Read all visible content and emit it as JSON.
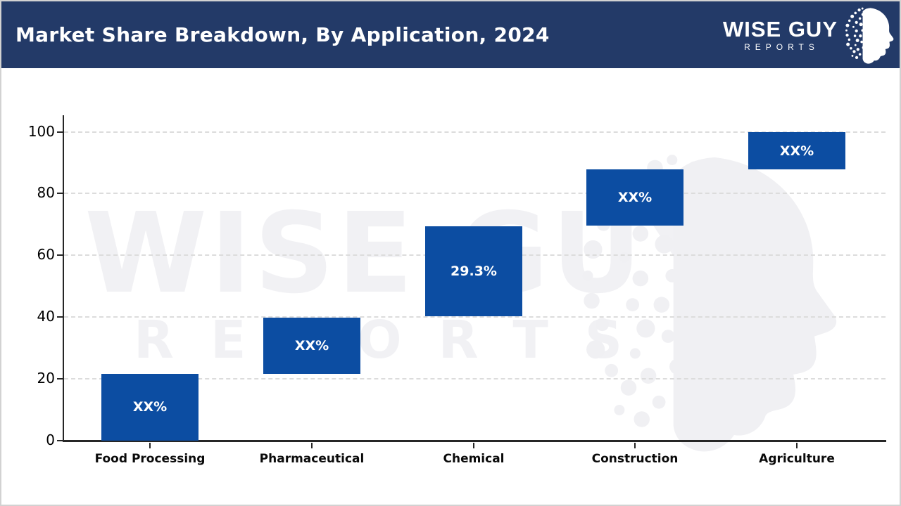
{
  "header": {
    "title": "Market Share Breakdown, By Application, 2024",
    "logo": {
      "line1": "WISE GUY",
      "line2": "REPORTS"
    }
  },
  "watermark": {
    "line1": "WISE GUY",
    "line2": "REPORTS"
  },
  "chart_data": {
    "type": "bar",
    "subtype": "floating-waterfall",
    "title": "Market Share Breakdown, By Application, 2024",
    "categories": [
      "Food Processing",
      "Pharmaceutical",
      "Chemical",
      "Construction",
      "Agriculture"
    ],
    "segments": [
      {
        "category": "Food Processing",
        "start": 0,
        "end": 21.7,
        "label": "XX%"
      },
      {
        "category": "Pharmaceutical",
        "start": 21.7,
        "end": 39.8,
        "label": "XX%"
      },
      {
        "category": "Chemical",
        "start": 40.2,
        "end": 69.5,
        "label": "29.3%"
      },
      {
        "category": "Construction",
        "start": 69.6,
        "end": 87.8,
        "label": "XX%"
      },
      {
        "category": "Agriculture",
        "start": 87.8,
        "end": 99.9,
        "label": "XX%"
      }
    ],
    "values": [
      21.7,
      18.1,
      29.3,
      18.2,
      12.1
    ],
    "yticks": [
      0,
      20,
      40,
      60,
      80,
      100
    ],
    "ylim": [
      0,
      105
    ],
    "xlabel": "",
    "ylabel": "",
    "grid": "horizontal-dashed",
    "legend": "none"
  },
  "colors": {
    "header_bg": "#233A68",
    "bar_blue": "#0C4DA2",
    "bar_label": "#FFFFFF",
    "watermark_gray": "#F1F1F4",
    "gridline_gray": "#DCDCDC",
    "axis_dark": "#262626",
    "page_border": "#D2D2D2"
  }
}
